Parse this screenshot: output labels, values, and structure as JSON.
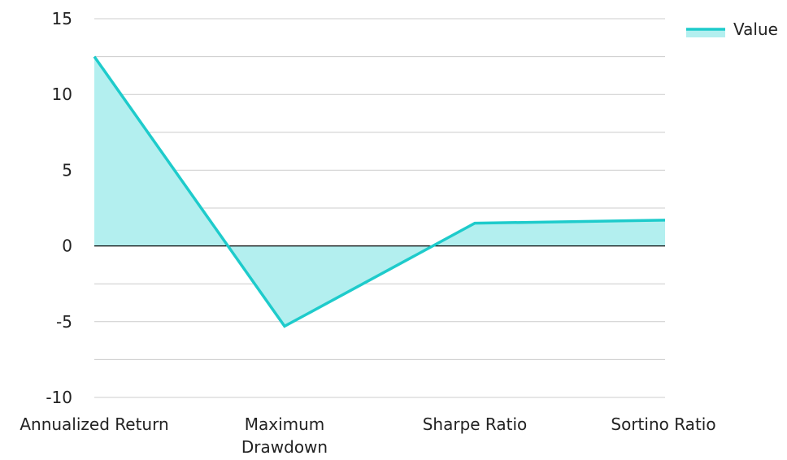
{
  "chart_data": {
    "type": "area",
    "categories": [
      "Annualized Return",
      "Maximum Drawdown",
      "Sharpe Ratio",
      "Sortino Ratio"
    ],
    "series": [
      {
        "name": "Value",
        "values": [
          12.5,
          -5.3,
          1.5,
          1.7
        ]
      }
    ],
    "ylim": [
      -10,
      15
    ],
    "yticks": [
      -10,
      -5,
      0,
      5,
      10,
      15
    ],
    "grid": true,
    "legend": "top-right",
    "colors": {
      "line": "#1ECBCB",
      "fill": "#B3EFEF",
      "grid": "#CCCCCC",
      "zero_line": "#000000",
      "text": "#222222"
    }
  }
}
